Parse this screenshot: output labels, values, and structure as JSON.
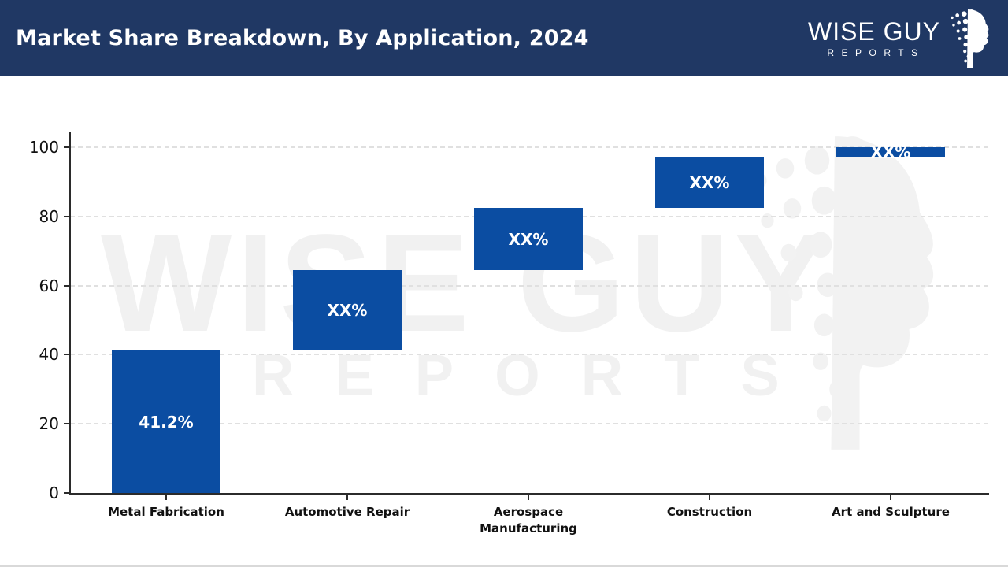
{
  "header": {
    "title": "Market Share Breakdown, By Application, 2024",
    "logo": {
      "line1": "WISE GUY",
      "line2": "REPORTS"
    }
  },
  "watermark": {
    "line1": "WISE GUY",
    "line2": "REPORTS"
  },
  "chart_data": {
    "type": "bar",
    "variant": "waterfall",
    "title": "Market Share Breakdown, By Application, 2024",
    "categories": [
      "Metal Fabrication",
      "Automotive Repair",
      "Aerospace\nManufacturing",
      "Construction",
      "Art and Sculpture"
    ],
    "segments": [
      {
        "category": "Metal Fabrication",
        "start": 0,
        "end": 41.2,
        "label": "41.2%"
      },
      {
        "category": "Automotive Repair",
        "start": 41.2,
        "end": 64.5,
        "label": "XX%"
      },
      {
        "category": "Aerospace Manufacturing",
        "start": 64.5,
        "end": 82.4,
        "label": "XX%"
      },
      {
        "category": "Construction",
        "start": 82.4,
        "end": 97.2,
        "label": "XX%"
      },
      {
        "category": "Art and Sculpture",
        "start": 97.2,
        "end": 100.0,
        "label": "XX%"
      }
    ],
    "yticks": [
      0,
      20,
      40,
      60,
      80,
      100
    ],
    "ylim": [
      0,
      104
    ],
    "grid": "horizontal-dashed",
    "legend": "none",
    "xlabel": "",
    "ylabel": ""
  },
  "colors": {
    "header_bg": "#203864",
    "bar": "#0b4da2",
    "bar_label": "#ffffff",
    "grid": "#e0e0e0",
    "axis": "#2b2b2b",
    "watermark": "#f1f1f1"
  }
}
